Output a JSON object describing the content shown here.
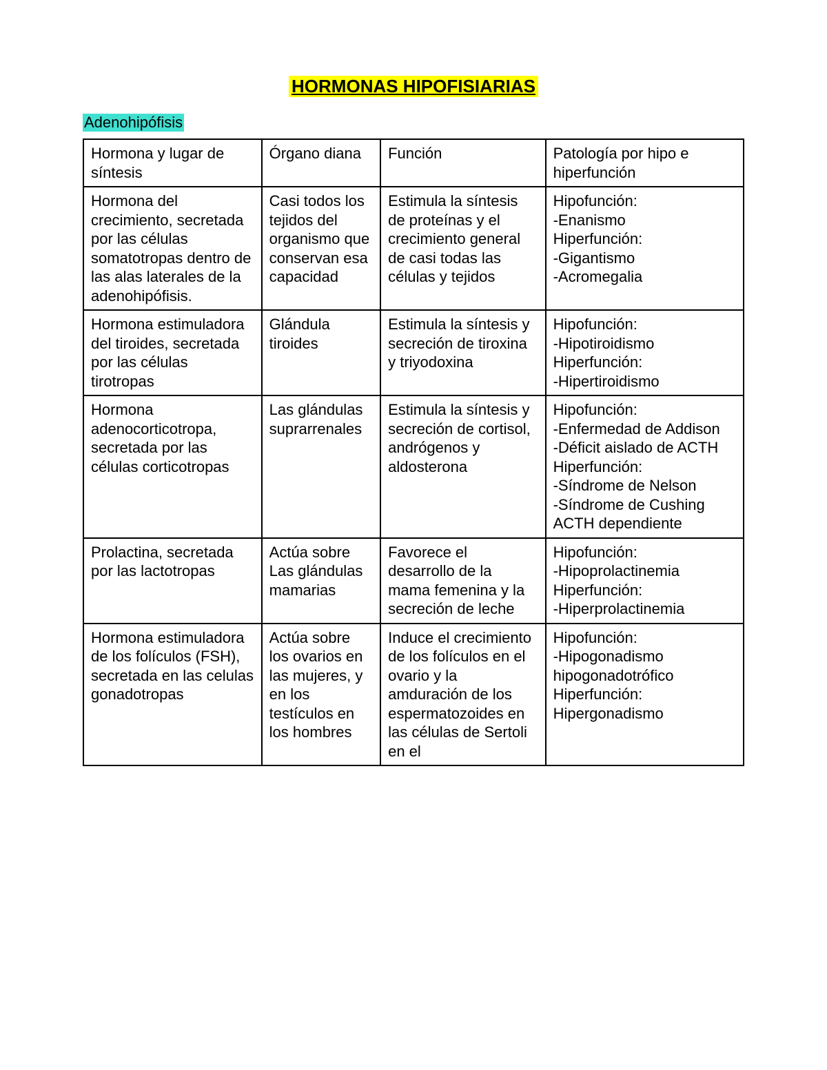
{
  "title": "HORMONAS HIPOFISIARIAS",
  "subtitle": "Adenohipófisis",
  "colors": {
    "title_highlight": "#ffff00",
    "subtitle_highlight": "#40e0d0",
    "border": "#000000",
    "background": "#ffffff",
    "text": "#000000"
  },
  "columns": [
    "Hormona y lugar de síntesis",
    "Órgano diana",
    "Función",
    "Patología por hipo e hiperfunción"
  ],
  "rows": [
    {
      "hormone": "Hormona del crecimiento, secretada por las células somatotropas dentro de las alas laterales de la adenohipófisis.",
      "target": "Casi todos los tejidos del organismo que conservan esa capacidad",
      "function": "Estimula la síntesis de proteínas y el crecimiento general de casi todas las células y tejidos",
      "pathology": [
        "Hipofunción:",
        "-Enanismo",
        "Hiperfunción:",
        "-Gigantismo",
        "-Acromegalia"
      ]
    },
    {
      "hormone": "Hormona estimuladora del tiroides, secretada por las células tirotropas",
      "target": "Glándula tiroides",
      "function": "Estimula la síntesis y secreción  de tiroxina y triyodoxina",
      "pathology": [
        "Hipofunción:",
        "-Hipotiroidismo",
        "Hiperfunción:",
        "-Hipertiroidismo"
      ]
    },
    {
      "hormone": "Hormona adenocorticotropa, secretada por las células corticotropas",
      "target": "Las glándulas suprarrenales",
      "function": "Estimula la síntesis y secreción de cortisol, andrógenos y aldosterona",
      "pathology": [
        "Hipofunción:",
        "-Enfermedad de Addison",
        "-Déficit aislado de ACTH",
        "Hiperfunción:",
        "-Síndrome de Nelson",
        "-Síndrome de Cushing ACTH dependiente"
      ]
    },
    {
      "hormone": "Prolactina, secretada por las lactotropas",
      "target": "Actúa sobre Las glándulas mamarias",
      "function": "Favorece el desarrollo de la mama femenina y la secreción de leche",
      "pathology": [
        "Hipofunción:",
        "-Hipoprolactinemia",
        "Hiperfunción:",
        "-Hiperprolactinemia"
      ]
    },
    {
      "hormone": "Hormona estimuladora de los folículos (FSH), secretada en las celulas gonadotropas",
      "target": "Actúa sobre los ovarios en las mujeres, y en los testículos en los hombres",
      "function": "Induce el crecimiento de los folículos en el ovario y la amduración de los espermatozoides en las células de Sertoli en el",
      "pathology": [
        "Hipofunción:",
        "-Hipogonadismo hipogonadotrófico",
        "Hiperfunción:",
        "Hipergonadismo"
      ]
    }
  ]
}
